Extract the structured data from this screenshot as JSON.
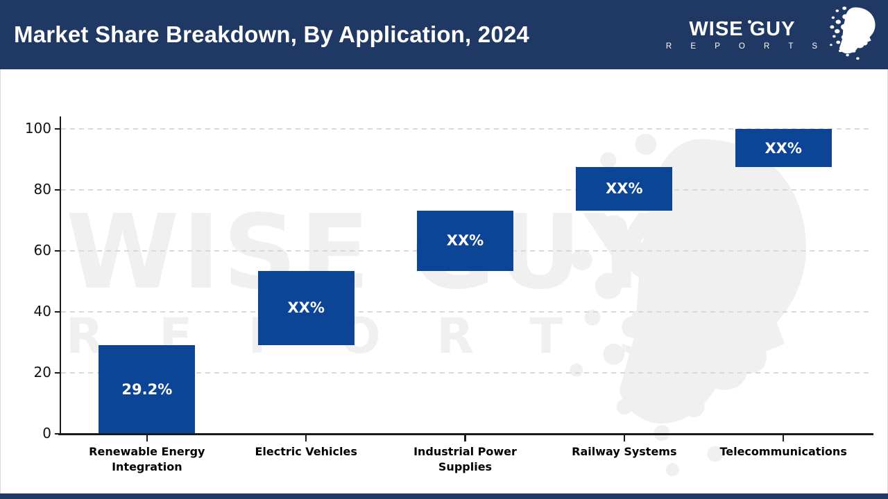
{
  "header": {
    "title": "Market Share Breakdown, By Application, 2024",
    "logo": {
      "wordmark": "WISE GUY",
      "subtext": "R E P O R T S"
    }
  },
  "watermark": {
    "wordmark": "WISE GUY",
    "subtext": "R E P O R T S"
  },
  "chart_data": {
    "type": "bar",
    "variant": "floating-waterfall",
    "title": "Market Share Breakdown, By Application, 2024",
    "categories": [
      "Renewable Energy\nIntegration",
      "Electric Vehicles",
      "Industrial Power\nSupplies",
      "Railway Systems",
      "Telecommunications"
    ],
    "segments": [
      {
        "label": "29.2%",
        "start": 0,
        "end": 29.2
      },
      {
        "label": "XX%",
        "start": 29.2,
        "end": 53.5
      },
      {
        "label": "XX%",
        "start": 53.5,
        "end": 73.2
      },
      {
        "label": "XX%",
        "start": 73.2,
        "end": 87.5
      },
      {
        "label": "XX%",
        "start": 87.5,
        "end": 100
      }
    ],
    "values": [
      29.2,
      24.3,
      19.7,
      14.3,
      12.5
    ],
    "bar_labels": [
      "29.2%",
      "XX%",
      "XX%",
      "XX%",
      "XX%"
    ],
    "xlabel": "",
    "ylabel": "",
    "ylim": [
      0,
      100
    ],
    "yticks": [
      0,
      20,
      40,
      60,
      80,
      100
    ],
    "grid": true,
    "legend_position": "none",
    "colors": {
      "bar": "#0d4596",
      "header_bg": "#203864",
      "grid": "#d9d9d9",
      "axis": "#1a1a1a",
      "bar_label": "#ffffff",
      "watermark": "#f0f0f0"
    }
  }
}
